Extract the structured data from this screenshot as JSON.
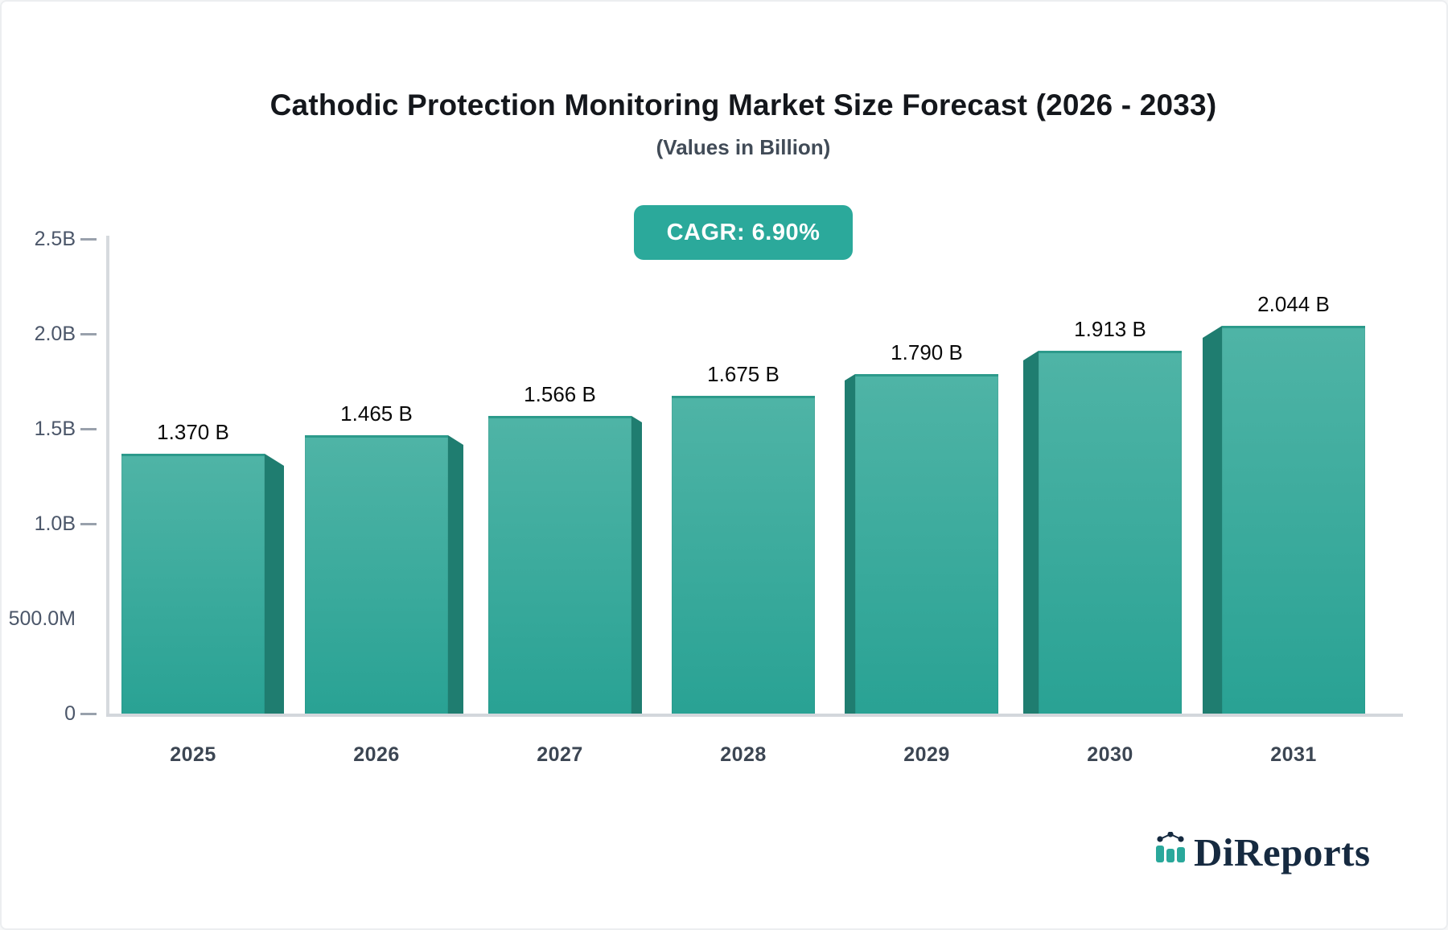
{
  "title": "Cathodic Protection Monitoring Market Size Forecast (2026 - 2033)",
  "subtitle": "(Values in Billion)",
  "badge_label": "CAGR: 6.90%",
  "chart_data": {
    "type": "bar",
    "categories": [
      "2025",
      "2026",
      "2027",
      "2028",
      "2029",
      "2030",
      "2031"
    ],
    "values": [
      1.37,
      1.465,
      1.566,
      1.675,
      1.79,
      1.913,
      2.044
    ],
    "value_labels": [
      "1.370 B",
      "1.465 B",
      "1.566 B",
      "1.675 B",
      "1.790 B",
      "1.913 B",
      "2.044 B"
    ],
    "title": "Cathodic Protection Monitoring Market Size Forecast (2026 - 2033)",
    "subtitle": "(Values in Billion)",
    "annotation": "CAGR: 6.90%",
    "xlabel": "",
    "ylabel": "",
    "unit": "Billion USD",
    "ylim": [
      0,
      2.5
    ],
    "grid": false,
    "legend_position": "none",
    "yticks": [
      {
        "label": "2.5B",
        "value": 2.5,
        "dash": true
      },
      {
        "label": "2.0B",
        "value": 2.0,
        "dash": true
      },
      {
        "label": "1.5B",
        "value": 1.5,
        "dash": true
      },
      {
        "label": "1.0B",
        "value": 1.0,
        "dash": true
      },
      {
        "label": "500.0M",
        "value": 0.5,
        "dash": false
      },
      {
        "label": "0",
        "value": 0.0,
        "dash": true
      }
    ]
  },
  "colors": {
    "bar_face_top": "#4fb4a6",
    "bar_face_bottom": "#29a294",
    "bar_top_edge": "#2c9a8b",
    "bar_side": "#1f7d70",
    "badge_bg": "#2ba99b",
    "axis_line": "#d4d8dd",
    "tick_text": "#4b5669",
    "logo_teal": "#2aa89b",
    "logo_navy": "#162a40"
  },
  "logo": {
    "text": "DiReports",
    "icon": "bar-line-chart-icon"
  }
}
